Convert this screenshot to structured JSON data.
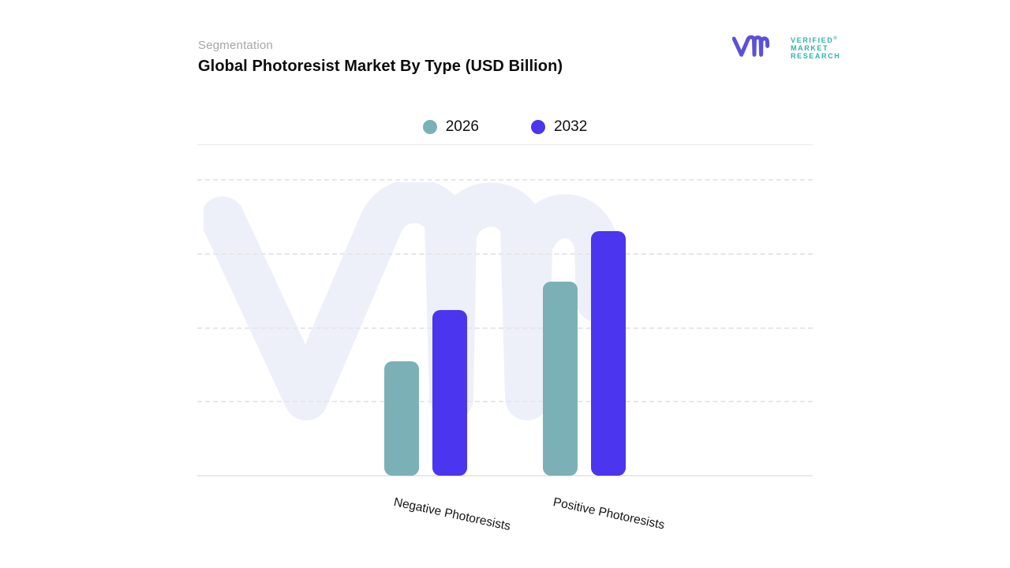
{
  "header": {
    "eyebrow": "Segmentation",
    "title": "Global Photoresist Market By Type",
    "title_suffix": "(USD Billion)"
  },
  "logo": {
    "glyph": "vmr-monogram",
    "glyph_color": "#5B51D8",
    "text_color": "#2FB3AA",
    "lines": [
      "VERIFIED",
      "MARKET",
      "RESEARCH"
    ],
    "registered_mark": "®"
  },
  "legend": [
    {
      "label": "2026",
      "color": "#7BB1B6"
    },
    {
      "label": "2032",
      "color": "#4B35EE"
    }
  ],
  "chart_data": {
    "type": "bar",
    "title": "Global Photoresist Market By Type (USD Billion)",
    "categories": [
      "Negative Photoresists",
      "Positive Photoresists"
    ],
    "series": [
      {
        "name": "2026",
        "color": "#7BB1B6",
        "values": [
          1.55,
          2.62
        ]
      },
      {
        "name": "2032",
        "color": "#4B35EE",
        "values": [
          2.24,
          3.31
        ]
      }
    ],
    "ylim": [
      0,
      4
    ],
    "gridline_step": 1,
    "y_axis_tick_labels_visible": false,
    "grid": "horizontal-dashed",
    "legend_position": "top-center",
    "x_label_rotation_deg": 12,
    "note": "No numeric axis labels shown; values estimated in gridline units (1 unit per dashed gridline, baseline = 0)."
  },
  "watermark": {
    "name": "vmr-logo-watermark",
    "color": "#EEF0F9"
  }
}
